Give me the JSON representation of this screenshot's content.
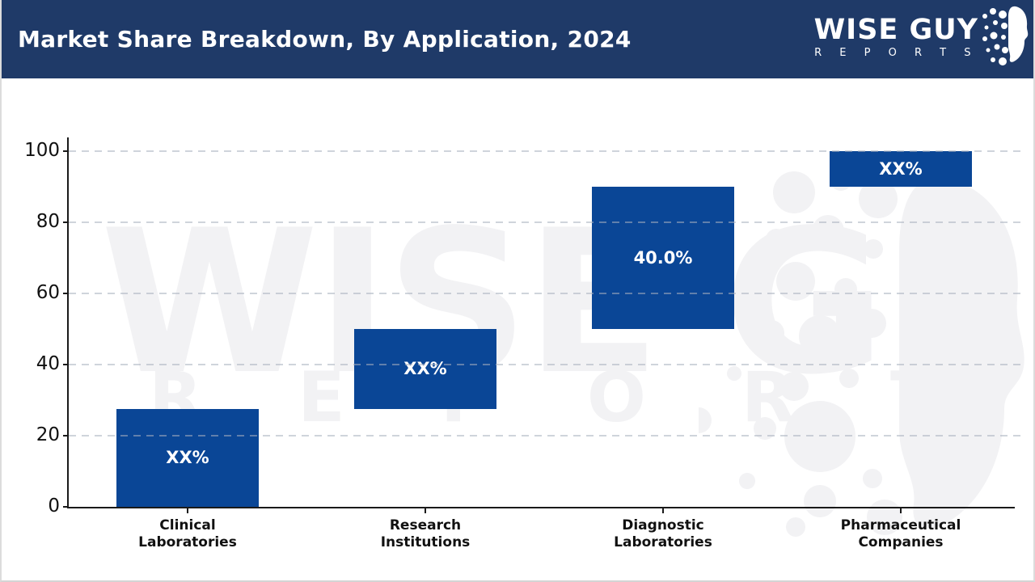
{
  "header": {
    "title": "Market Share Breakdown, By Application, 2024",
    "bg_color": "#1f3a68",
    "logo": {
      "line1": "WISE GUY",
      "line2": "R E P O R T S"
    }
  },
  "watermark": {
    "big_text": "WISE GUY",
    "reports_text": "R E P O R T S",
    "color": "#f2f2f4"
  },
  "chart_data": {
    "type": "bar",
    "variant": "floating-waterfall",
    "title": "Market Share Breakdown, By Application, 2024",
    "categories": [
      "Clinical\nLaboratories",
      "Research\nInstitutions",
      "Diagnostic\nLaboratories",
      "Pharmaceutical\nCompanies"
    ],
    "series": [
      {
        "name": "Market Share",
        "segments": [
          {
            "category": "Clinical Laboratories",
            "start": 0,
            "end": 27.5,
            "label": "XX%"
          },
          {
            "category": "Research Institutions",
            "start": 27.5,
            "end": 50,
            "label": "XX%"
          },
          {
            "category": "Diagnostic Laboratories",
            "start": 50,
            "end": 90,
            "label": "40.0%"
          },
          {
            "category": "Pharmaceutical Companies",
            "start": 90,
            "end": 100,
            "label": "XX%"
          }
        ]
      }
    ],
    "ylim": [
      0,
      100
    ],
    "yticks": [
      0,
      20,
      40,
      60,
      80,
      100
    ],
    "xlabel": "",
    "ylabel": "",
    "grid": "horizontal-dashed",
    "legend": "none",
    "bar_color": "#0a4696",
    "bar_label_color": "#ffffff",
    "axis_color": "#1a1a1a",
    "grid_color": "#d9d9d9"
  }
}
